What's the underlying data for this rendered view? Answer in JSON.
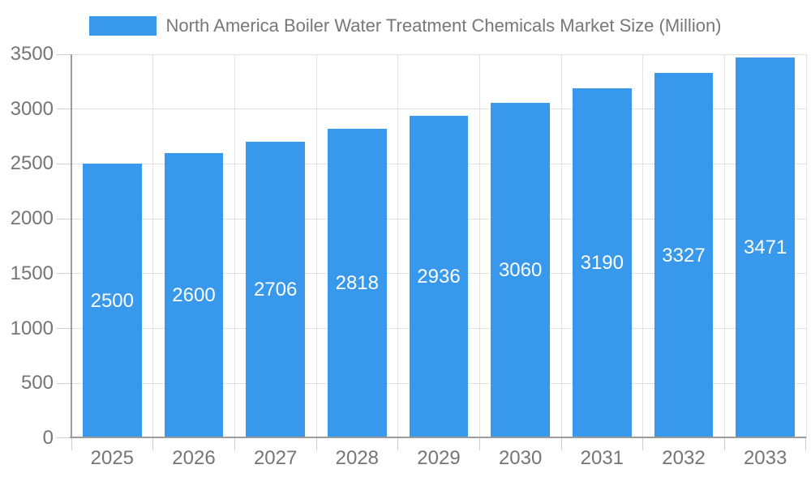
{
  "chart_data": {
    "type": "bar",
    "title": "North America Boiler Water Treatment Chemicals Market Size (Million)",
    "categories": [
      "2025",
      "2026",
      "2027",
      "2028",
      "2029",
      "2030",
      "2031",
      "2032",
      "2033"
    ],
    "values": [
      2500,
      2600,
      2706,
      2818,
      2936,
      3060,
      3190,
      3327,
      3471
    ],
    "xlabel": "",
    "ylabel": "",
    "ylim": [
      0,
      3500
    ],
    "ytick_step": 500,
    "grid": true,
    "legend_position": "top",
    "bar_labels_position": "center-inside",
    "colors": {
      "bar": "#3899EC",
      "bar_label": "#FFFFFF",
      "grid": "#E2E2E2",
      "tick": "#CDCDCD",
      "axis": "#9C9C9C",
      "text": "#757575"
    }
  }
}
